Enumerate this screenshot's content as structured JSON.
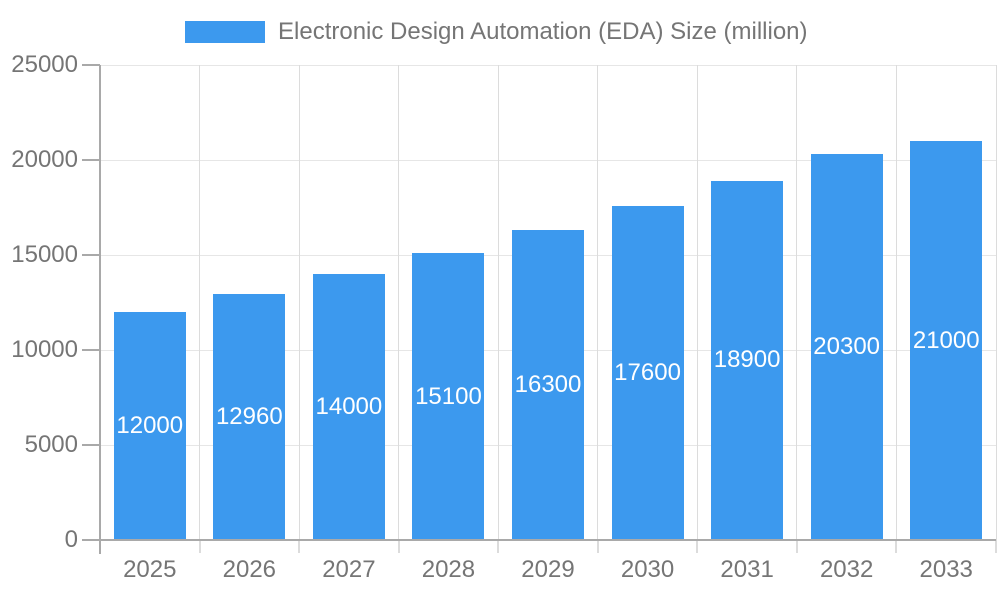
{
  "legend": {
    "label": "Electronic Design Automation (EDA) Size (million)"
  },
  "chart_data": {
    "type": "bar",
    "title": "Electronic Design Automation (EDA) Size (million)",
    "legend_position": "top",
    "categories": [
      "2025",
      "2026",
      "2027",
      "2028",
      "2029",
      "2030",
      "2031",
      "2032",
      "2033"
    ],
    "series": [
      {
        "name": "Electronic Design Automation (EDA) Size (million)",
        "values": [
          12000,
          12960,
          14000,
          15100,
          16300,
          17600,
          18900,
          20300,
          21000
        ]
      }
    ],
    "value_labels": [
      "12000",
      "12960",
      "14000",
      "15100",
      "16300",
      "17600",
      "18900",
      "20300",
      "21000"
    ],
    "xlabel": "",
    "ylabel": "",
    "ylim": [
      0,
      25000
    ],
    "yticks": [
      0,
      5000,
      10000,
      15000,
      20000,
      25000
    ],
    "grid": true,
    "colors": {
      "bar": "#3C99EE",
      "value_label": "#FFFFFF",
      "axis_text": "#757575",
      "legend_text": "#757575",
      "grid_h": "#E6E6E6",
      "grid_v": "#DCDCDC",
      "axis_line": "#A9A9A9",
      "y_tick": "#A9A9A9",
      "x_tick": "#DCDCDC"
    }
  }
}
